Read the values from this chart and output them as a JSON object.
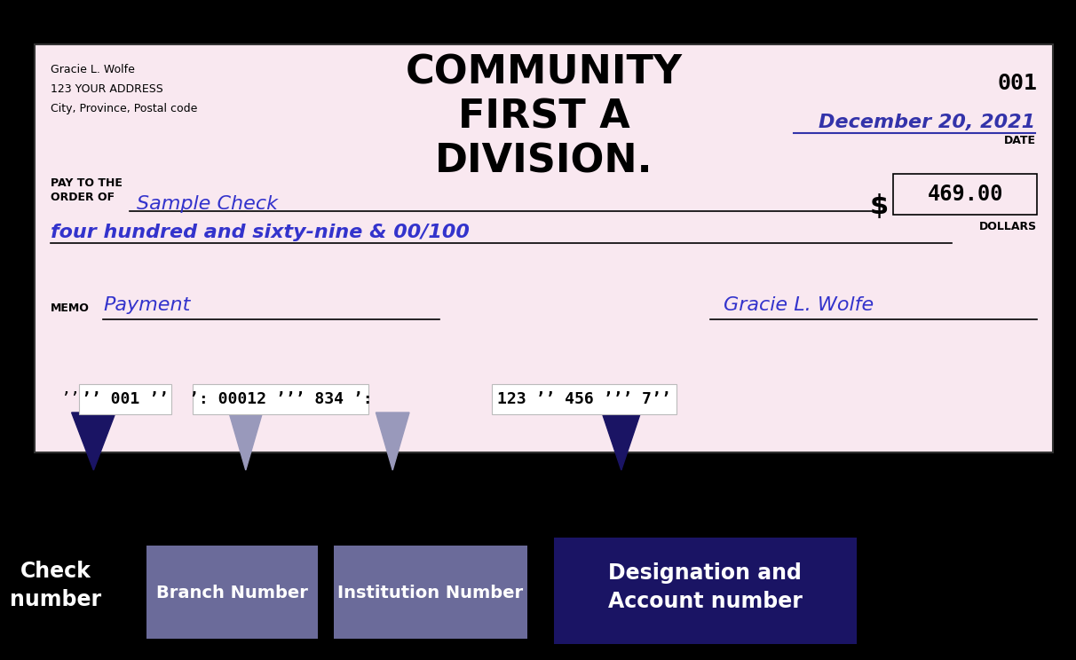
{
  "bg_outer": "#000000",
  "bg_check": "#f9e8f0",
  "check_border": "#333333",
  "dark_navy": "#1a1464",
  "medium_gray_blue": "#6b6b9a",
  "check_number": "001",
  "name_address": [
    "Gracie L. Wolfe",
    "123 YOUR ADDRESS",
    "City, Province, Postal code"
  ],
  "bank_name_lines": [
    "COMMUNITY",
    "FIRST A",
    "DIVISION."
  ],
  "date_text": "December 20, 2021",
  "date_label": "DATE",
  "pay_to_label": "PAY TO THE",
  "pay_to_label2": "ORDER OF",
  "payee": "Sample Check",
  "dollar_sign": "$",
  "amount": "469.00",
  "amount_words": "four hundred and sixty-nine & 00/100",
  "dollars_label": "DOLLARS",
  "memo_label": "MEMO",
  "memo_value": "Payment",
  "signature": "Gracie L. Wolfe",
  "micr_check": "\" 001 \"",
  "micr_branch": "': 00012 \"\" 834 ':",
  "micr_account": "123 \"\" 456 \"\" 7'",
  "label_check": "Check\nnumber",
  "label_branch": "Branch Number",
  "label_institution": "Institution Number",
  "label_desig": "Designation and\nAccount number",
  "blue_color": "#3333aa",
  "cursive_color": "#3333cc",
  "black_text": "#000000",
  "white_text": "#ffffff",
  "light_gray_arrow": "#9999bb"
}
